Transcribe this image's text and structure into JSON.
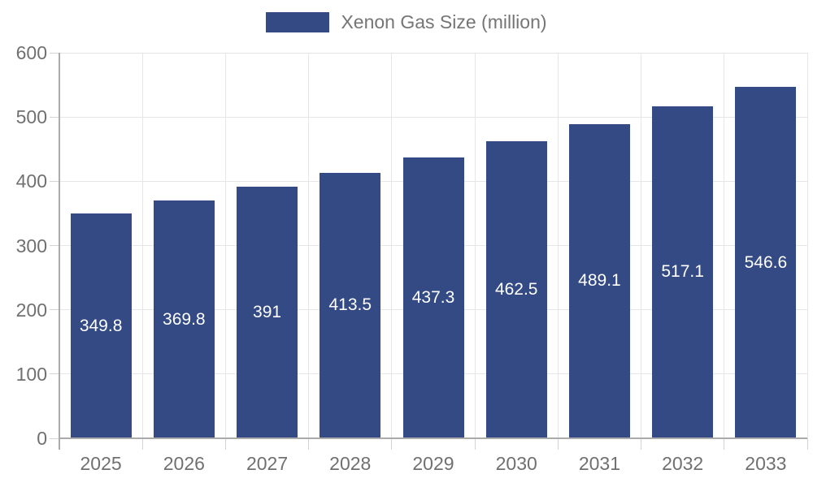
{
  "legend": {
    "label": "Xenon Gas Size (million)"
  },
  "colors": {
    "bar": "#344a84",
    "grid": "#e6e6e6",
    "axis": "#ababab",
    "tick": "#d4d4d4",
    "axis_text": "#707070",
    "legend_text": "#757575",
    "value_text": "#ffffff",
    "background": "#ffffff"
  },
  "chart_data": {
    "type": "bar",
    "title": "Xenon Gas Size (million)",
    "categories": [
      "2025",
      "2026",
      "2027",
      "2028",
      "2029",
      "2030",
      "2031",
      "2032",
      "2033"
    ],
    "series": [
      {
        "name": "Xenon Gas Size (million)",
        "values": [
          349.8,
          369.8,
          391,
          413.5,
          437.3,
          462.5,
          489.1,
          517.1,
          546.6
        ]
      }
    ],
    "value_labels": [
      "349.8",
      "369.8",
      "391",
      "413.5",
      "437.3",
      "462.5",
      "489.1",
      "517.1",
      "546.6"
    ],
    "xlabel": "",
    "ylabel": "",
    "ylim": [
      0,
      600
    ],
    "yticks": [
      0,
      100,
      200,
      300,
      400,
      500,
      600
    ],
    "grid": true,
    "legend_position": "top"
  }
}
